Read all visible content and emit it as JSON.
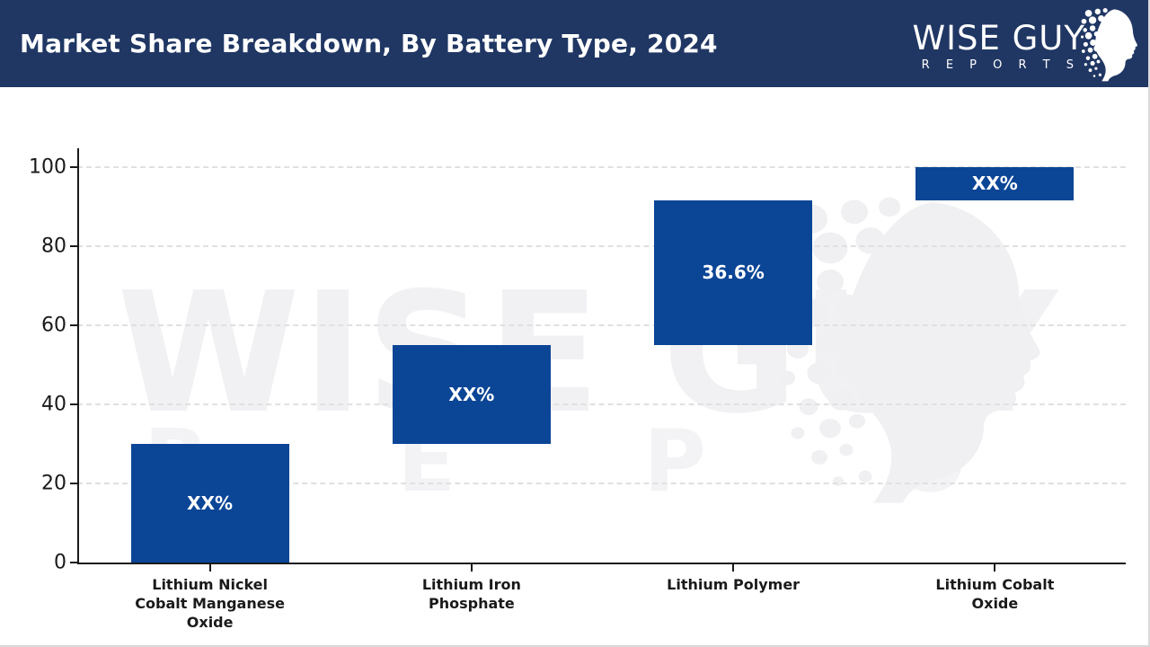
{
  "header": {
    "title": "Market Share Breakdown, By Battery Type, 2024",
    "logo_line1": "WISE GUY",
    "logo_line2": "R E P O R T S"
  },
  "watermark": {
    "line1": "WISE GUY",
    "line2": "R E P O R T S"
  },
  "colors": {
    "header_bg": "#203764",
    "bar": "#0b4596",
    "grid": "#e0e0e0",
    "axis": "#1a1a1a",
    "bar_label": "#ffffff",
    "watermark": "#f1f1f4"
  },
  "chart_data": {
    "type": "bar",
    "subtype": "waterfall-floating-segments",
    "title": "Market Share Breakdown, By Battery Type, 2024",
    "categories": [
      "Lithium Nickel Cobalt Manganese Oxide",
      "Lithium Iron Phosphate",
      "Lithium Polymer",
      "Lithium Cobalt Oxide"
    ],
    "category_label_lines": [
      [
        "Lithium Nickel",
        "Cobalt Manganese",
        "Oxide"
      ],
      [
        "Lithium Iron",
        "Phosphate"
      ],
      [
        "Lithium Polymer"
      ],
      [
        "Lithium Cobalt",
        "Oxide"
      ]
    ],
    "segments": [
      {
        "category": "Lithium Nickel Cobalt Manganese Oxide",
        "start": 0,
        "end": 30,
        "value": 30,
        "label": "XX%"
      },
      {
        "category": "Lithium Iron Phosphate",
        "start": 30,
        "end": 55,
        "value": 25,
        "label": "XX%"
      },
      {
        "category": "Lithium Polymer",
        "start": 55,
        "end": 91.6,
        "value": 36.6,
        "label": "36.6%"
      },
      {
        "category": "Lithium Cobalt Oxide",
        "start": 91.6,
        "end": 100,
        "value": 8.4,
        "label": "XX%"
      }
    ],
    "ylim": [
      0,
      100
    ],
    "yticks": [
      0,
      20,
      40,
      60,
      80,
      100
    ],
    "grid": "horizontal dashed",
    "legend": "none",
    "bar_color": "#0b4596",
    "bar_label_color": "#ffffff"
  }
}
